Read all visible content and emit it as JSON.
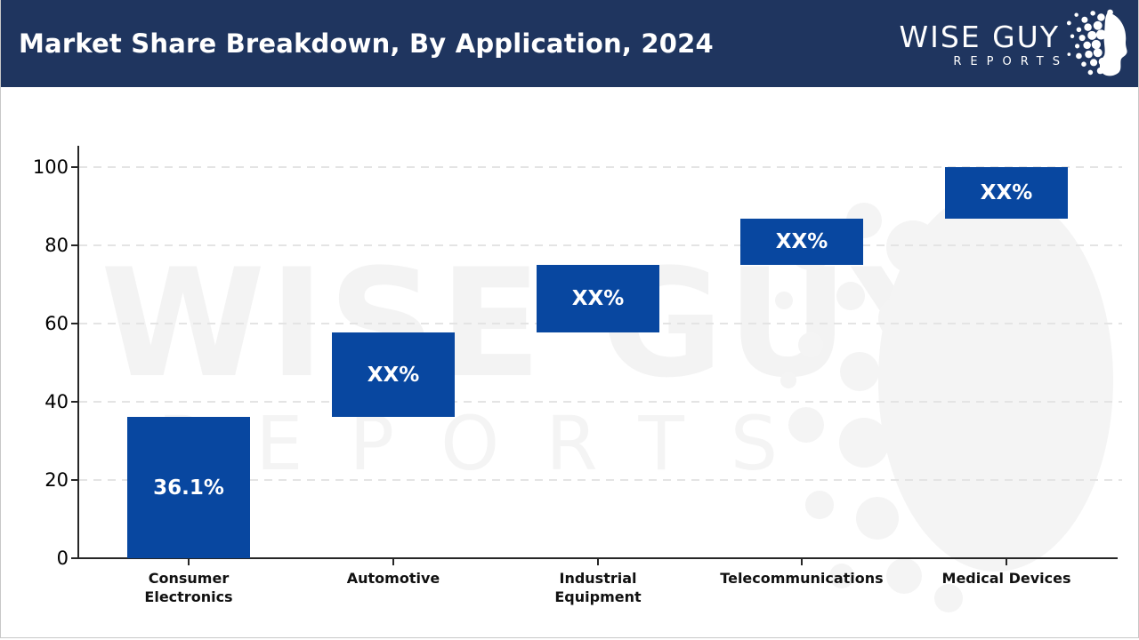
{
  "header": {
    "title": "Market Share Breakdown, By Application, 2024",
    "logo": {
      "name": "WISE GUY",
      "sub": "REPORTS"
    }
  },
  "watermark": {
    "line1": "WISE GUY",
    "line2": "REPORTS"
  },
  "chart_data": {
    "type": "bar",
    "subtype": "waterfall",
    "title": "Market Share Breakdown, By Application, 2024",
    "categories": [
      "Consumer\nElectronics",
      "Automotive",
      "Industrial\nEquipment",
      "Telecommunications",
      "Medical Devices"
    ],
    "segments": [
      {
        "category": "Consumer Electronics",
        "from": 0,
        "to": 36.1,
        "label": "36.1%"
      },
      {
        "category": "Automotive",
        "from": 36.1,
        "to": 57.7,
        "label": "XX%"
      },
      {
        "category": "Industrial Equipment",
        "from": 57.7,
        "to": 75.0,
        "label": "XX%"
      },
      {
        "category": "Telecommunications",
        "from": 75.0,
        "to": 86.8,
        "label": "XX%"
      },
      {
        "category": "Medical Devices",
        "from": 86.8,
        "to": 100.0,
        "label": "XX%"
      }
    ],
    "yticks": [
      0,
      20,
      40,
      60,
      80,
      100
    ],
    "ylim": [
      0,
      100
    ],
    "xlabel": "",
    "ylabel": "",
    "grid": "horizontal-dashed",
    "legend": "none",
    "bar_color": "#0847A0",
    "bar_label_color": "#FFFFFF"
  },
  "colors": {
    "header_bg": "#1F355F",
    "bar": "#0847A0",
    "axis": "#262626",
    "grid": "#E4E4E4"
  }
}
